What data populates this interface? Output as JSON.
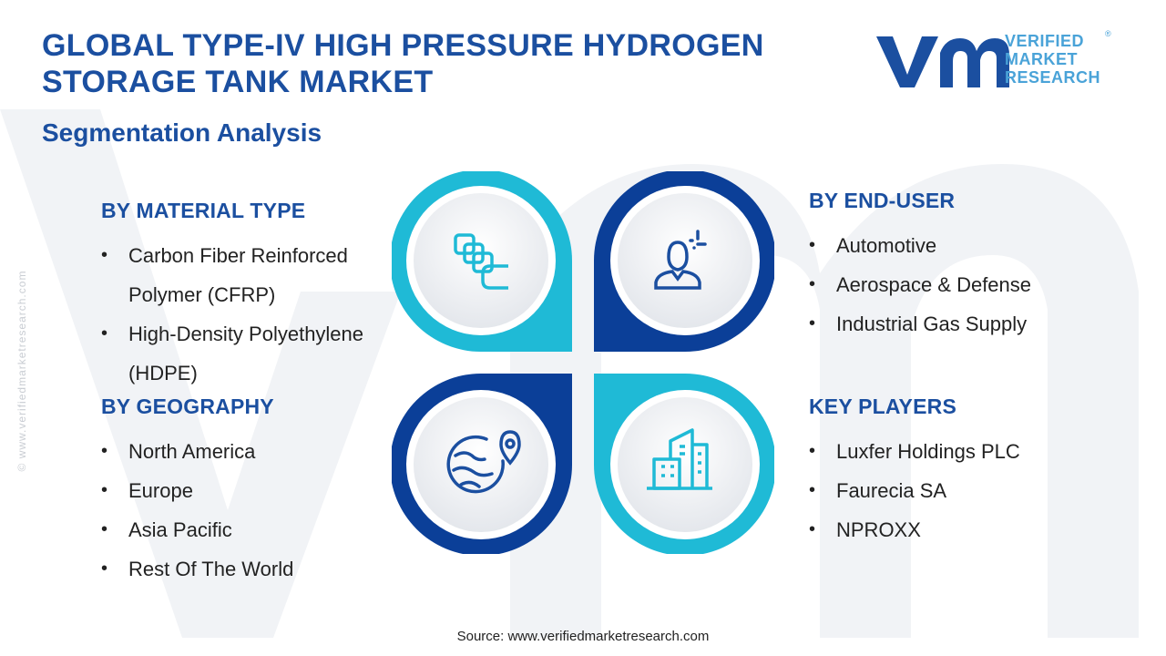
{
  "title": "GLOBAL TYPE-IV HIGH PRESSURE HYDROGEN STORAGE TANK MARKET",
  "subtitle": "Segmentation Analysis",
  "logo": {
    "line1": "VERIFIED",
    "line2": "MARKET",
    "line3": "RESEARCH",
    "registered": "®"
  },
  "side_watermark": "© www.verifiedmarketresearch.com",
  "segments": {
    "material": {
      "heading": "BY MATERIAL TYPE",
      "items": [
        "Carbon Fiber Reinforced Polymer (CFRP)",
        "High-Density Polyethylene (HDPE)"
      ]
    },
    "geography": {
      "heading": "BY GEOGRAPHY",
      "items": [
        "North America",
        "Europe",
        "Asia Pacific",
        "Rest Of The World"
      ]
    },
    "enduser": {
      "heading": "BY END-USER",
      "items": [
        "Automotive",
        "Aerospace & Defense",
        "Industrial Gas Supply"
      ]
    },
    "players": {
      "heading": "KEY PLAYERS",
      "items": [
        "Luxfer Holdings PLC",
        "Faurecia SA",
        "NPROXX"
      ]
    }
  },
  "icons": [
    "material-blocks-icon",
    "end-user-person-icon",
    "globe-location-icon",
    "city-buildings-icon"
  ],
  "colors": {
    "navy": "#1b4fa0",
    "cyan": "#1fbad6",
    "light_blue": "#4aa3d8",
    "dark_blue": "#0b3f98"
  },
  "source": "Source: www.verifiedmarketresearch.com"
}
